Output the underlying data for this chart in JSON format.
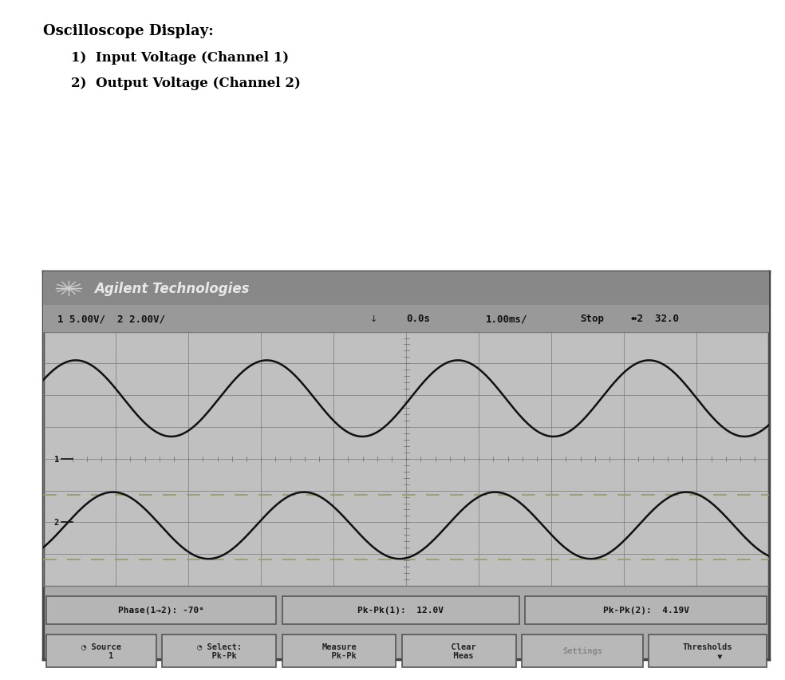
{
  "title_text": "Oscilloscope Display:",
  "subtitle1": "1)  Input Voltage (Channel 1)",
  "subtitle2": "2)  Output Voltage (Channel 2)",
  "scope_bg": "#aaaaaa",
  "scope_header_bg": "#888888",
  "screen_bg": "#c0c0c0",
  "grid_color": "#777777",
  "wave_color": "#111111",
  "header_text": "Agilent Technologies",
  "ch1_freq_cycles": 3.8,
  "phase_shift_deg": -70,
  "outer_border": "#444444",
  "figure_bg": "#ffffff",
  "dashed_color": "#999966",
  "btn_bg": "#b8b8b8",
  "btn_border": "#555555",
  "meas_bg": "#b5b5b5"
}
